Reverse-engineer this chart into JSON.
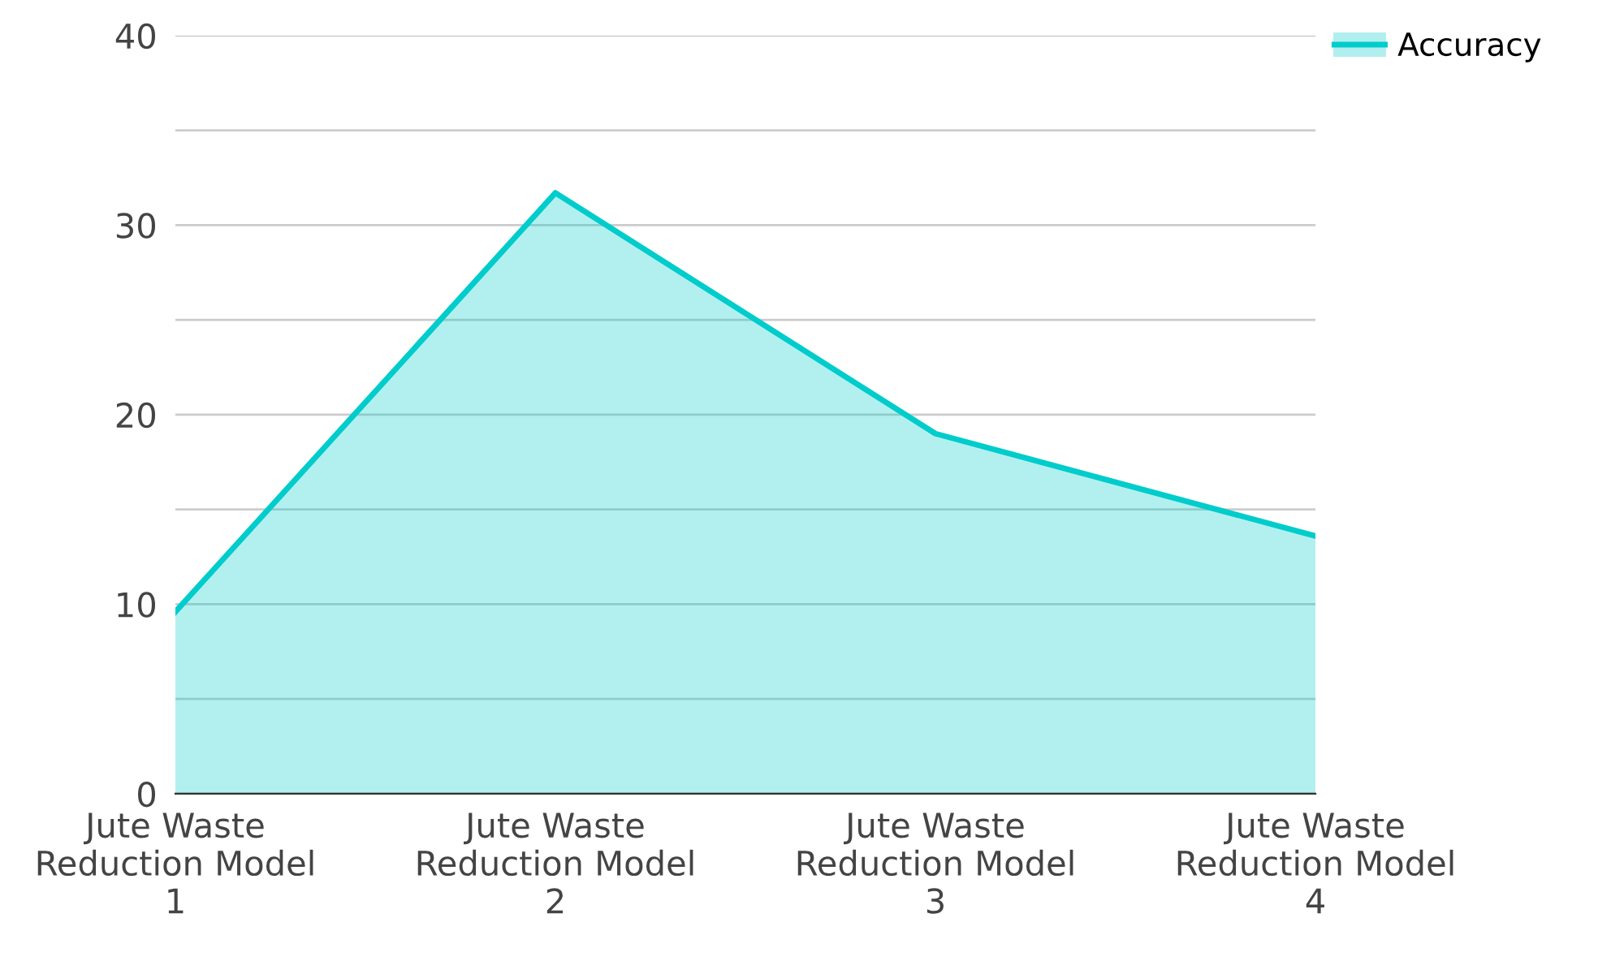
{
  "chart_data": {
    "type": "area",
    "categories": [
      "Jute Waste\nReduction Model\n1",
      "Jute Waste\nReduction Model\n2",
      "Jute Waste\nReduction Model\n3",
      "Jute Waste\nReduction Model\n4"
    ],
    "series": [
      {
        "name": "Accuracy",
        "color": "#00cccc",
        "values": [
          9.6,
          31.7,
          19.0,
          13.6
        ]
      }
    ],
    "ylim": [
      0,
      40
    ],
    "yticks": [
      0,
      {
        "value": 5,
        "label": null
      },
      10,
      {
        "value": 15,
        "label": null
      },
      20,
      {
        "value": 25,
        "label": null
      },
      30,
      {
        "value": 35,
        "label": null
      },
      40
    ],
    "grid": "y",
    "legend": "top right"
  }
}
